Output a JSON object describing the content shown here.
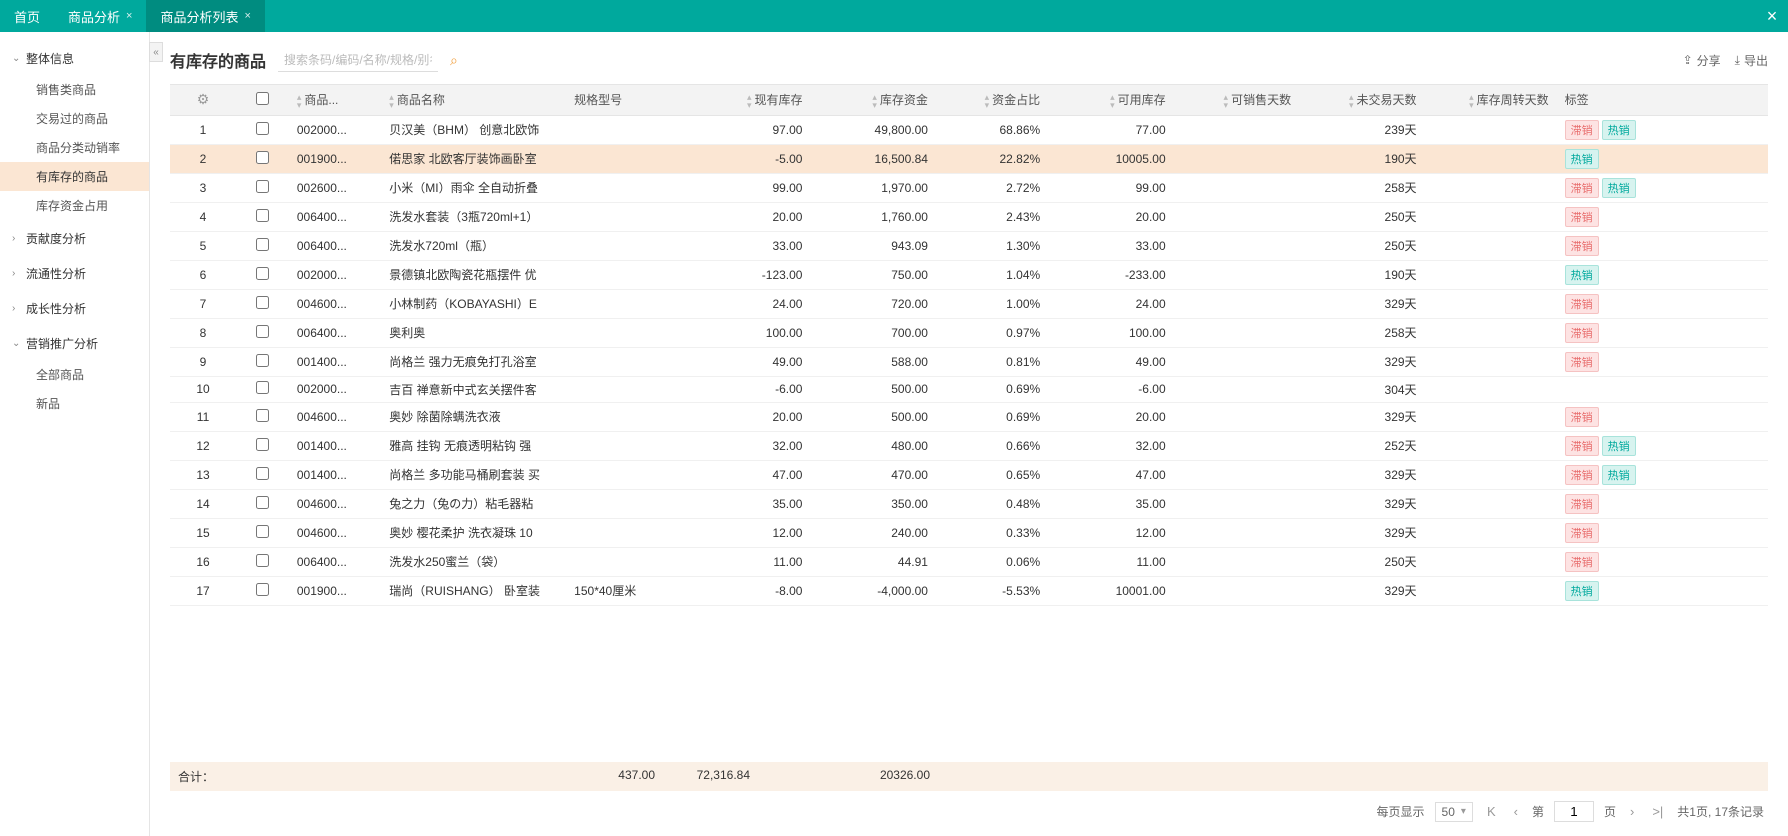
{
  "tabs": [
    {
      "label": "首页",
      "closable": false,
      "active": false
    },
    {
      "label": "商品分析",
      "closable": true,
      "active": false
    },
    {
      "label": "商品分析列表",
      "closable": true,
      "active": true
    }
  ],
  "sidebar": {
    "groups": [
      {
        "title": "整体信息",
        "open": true,
        "items": [
          {
            "label": "销售类商品",
            "active": false
          },
          {
            "label": "交易过的商品",
            "active": false
          },
          {
            "label": "商品分类动销率",
            "active": false
          },
          {
            "label": "有库存的商品",
            "active": true
          },
          {
            "label": "库存资金占用",
            "active": false
          }
        ]
      },
      {
        "title": "贡献度分析",
        "open": false,
        "items": []
      },
      {
        "title": "流通性分析",
        "open": false,
        "items": []
      },
      {
        "title": "成长性分析",
        "open": false,
        "items": []
      },
      {
        "title": "营销推广分析",
        "open": true,
        "items": [
          {
            "label": "全部商品",
            "active": false
          },
          {
            "label": "新品",
            "active": false
          }
        ]
      }
    ]
  },
  "header": {
    "title": "有库存的商品",
    "search_placeholder": "搜索条码/编码/名称/规格/别名",
    "share_label": "分享",
    "export_label": "导出"
  },
  "columns": {
    "gear": "",
    "check": "",
    "code": "商品...",
    "name": "商品名称",
    "spec": "规格型号",
    "stock": "现有库存",
    "capital": "库存资金",
    "ratio": "资金占比",
    "available": "可用库存",
    "saledays": "可销售天数",
    "notrade": "未交易天数",
    "turnover": "库存周转天数",
    "tag": "标签"
  },
  "col_widths": {
    "gear": 50,
    "check": 40,
    "code": 70,
    "name": 140,
    "spec": 90,
    "stock": 95,
    "capital": 95,
    "ratio": 85,
    "available": 95,
    "saledays": 95,
    "notrade": 95,
    "turnover": 100,
    "tag": 160
  },
  "rows": [
    {
      "n": 1,
      "code": "002000...",
      "name": "贝汉美（BHM） 创意北欧饰",
      "spec": "",
      "stock": "97.00",
      "capital": "49,800.00",
      "ratio": "68.86%",
      "available": "77.00",
      "saledays": "",
      "notrade": "239天",
      "turnover": "",
      "tags": [
        "滞销",
        "热销"
      ],
      "highlight": false
    },
    {
      "n": 2,
      "code": "001900...",
      "name": "偌思家 北欧客厅装饰画卧室",
      "spec": "",
      "stock": "-5.00",
      "capital": "16,500.84",
      "ratio": "22.82%",
      "available": "10005.00",
      "saledays": "",
      "notrade": "190天",
      "turnover": "",
      "tags": [
        "热销"
      ],
      "highlight": true
    },
    {
      "n": 3,
      "code": "002600...",
      "name": "小米（MI）雨伞 全自动折叠",
      "spec": "",
      "stock": "99.00",
      "capital": "1,970.00",
      "ratio": "2.72%",
      "available": "99.00",
      "saledays": "",
      "notrade": "258天",
      "turnover": "",
      "tags": [
        "滞销",
        "热销"
      ],
      "highlight": false
    },
    {
      "n": 4,
      "code": "006400...",
      "name": "洗发水套装（3瓶720ml+1）",
      "spec": "",
      "stock": "20.00",
      "capital": "1,760.00",
      "ratio": "2.43%",
      "available": "20.00",
      "saledays": "",
      "notrade": "250天",
      "turnover": "",
      "tags": [
        "滞销"
      ],
      "highlight": false
    },
    {
      "n": 5,
      "code": "006400...",
      "name": "洗发水720ml（瓶）",
      "spec": "",
      "stock": "33.00",
      "capital": "943.09",
      "ratio": "1.30%",
      "available": "33.00",
      "saledays": "",
      "notrade": "250天",
      "turnover": "",
      "tags": [
        "滞销"
      ],
      "highlight": false
    },
    {
      "n": 6,
      "code": "002000...",
      "name": "景德镇北欧陶瓷花瓶摆件 优",
      "spec": "",
      "stock": "-123.00",
      "capital": "750.00",
      "ratio": "1.04%",
      "available": "-233.00",
      "saledays": "",
      "notrade": "190天",
      "turnover": "",
      "tags": [
        "热销"
      ],
      "highlight": false
    },
    {
      "n": 7,
      "code": "004600...",
      "name": "小林制药（KOBAYASHI）E",
      "spec": "",
      "stock": "24.00",
      "capital": "720.00",
      "ratio": "1.00%",
      "available": "24.00",
      "saledays": "",
      "notrade": "329天",
      "turnover": "",
      "tags": [
        "滞销"
      ],
      "highlight": false
    },
    {
      "n": 8,
      "code": "006400...",
      "name": "奥利奥",
      "spec": "",
      "stock": "100.00",
      "capital": "700.00",
      "ratio": "0.97%",
      "available": "100.00",
      "saledays": "",
      "notrade": "258天",
      "turnover": "",
      "tags": [
        "滞销"
      ],
      "highlight": false
    },
    {
      "n": 9,
      "code": "001400...",
      "name": "尚格兰 强力无痕免打孔浴室",
      "spec": "",
      "stock": "49.00",
      "capital": "588.00",
      "ratio": "0.81%",
      "available": "49.00",
      "saledays": "",
      "notrade": "329天",
      "turnover": "",
      "tags": [
        "滞销"
      ],
      "highlight": false
    },
    {
      "n": 10,
      "code": "002000...",
      "name": "吉百 禅意新中式玄关摆件客",
      "spec": "",
      "stock": "-6.00",
      "capital": "500.00",
      "ratio": "0.69%",
      "available": "-6.00",
      "saledays": "",
      "notrade": "304天",
      "turnover": "",
      "tags": [],
      "highlight": false
    },
    {
      "n": 11,
      "code": "004600...",
      "name": "奥妙 除菌除螨洗衣液",
      "spec": "",
      "stock": "20.00",
      "capital": "500.00",
      "ratio": "0.69%",
      "available": "20.00",
      "saledays": "",
      "notrade": "329天",
      "turnover": "",
      "tags": [
        "滞销"
      ],
      "highlight": false
    },
    {
      "n": 12,
      "code": "001400...",
      "name": "雅高 挂钩 无痕透明粘钩 强",
      "spec": "",
      "stock": "32.00",
      "capital": "480.00",
      "ratio": "0.66%",
      "available": "32.00",
      "saledays": "",
      "notrade": "252天",
      "turnover": "",
      "tags": [
        "滞销",
        "热销"
      ],
      "highlight": false
    },
    {
      "n": 13,
      "code": "001400...",
      "name": "尚格兰 多功能马桶刷套装 买",
      "spec": "",
      "stock": "47.00",
      "capital": "470.00",
      "ratio": "0.65%",
      "available": "47.00",
      "saledays": "",
      "notrade": "329天",
      "turnover": "",
      "tags": [
        "滞销",
        "热销"
      ],
      "highlight": false
    },
    {
      "n": 14,
      "code": "004600...",
      "name": "兔之力（兔の力）粘毛器粘",
      "spec": "",
      "stock": "35.00",
      "capital": "350.00",
      "ratio": "0.48%",
      "available": "35.00",
      "saledays": "",
      "notrade": "329天",
      "turnover": "",
      "tags": [
        "滞销"
      ],
      "highlight": false
    },
    {
      "n": 15,
      "code": "004600...",
      "name": "奥妙 樱花柔护 洗衣凝珠 10",
      "spec": "",
      "stock": "12.00",
      "capital": "240.00",
      "ratio": "0.33%",
      "available": "12.00",
      "saledays": "",
      "notrade": "329天",
      "turnover": "",
      "tags": [
        "滞销"
      ],
      "highlight": false
    },
    {
      "n": 16,
      "code": "006400...",
      "name": "洗发水250蜜兰（袋）",
      "spec": "",
      "stock": "11.00",
      "capital": "44.91",
      "ratio": "0.06%",
      "available": "11.00",
      "saledays": "",
      "notrade": "250天",
      "turnover": "",
      "tags": [
        "滞销"
      ],
      "highlight": false
    },
    {
      "n": 17,
      "code": "001900...",
      "name": "瑞尚（RUISHANG） 卧室装",
      "spec": "150*40厘米",
      "stock": "-8.00",
      "capital": "-4,000.00",
      "ratio": "-5.53%",
      "available": "10001.00",
      "saledays": "",
      "notrade": "329天",
      "turnover": "",
      "tags": [
        "热销"
      ],
      "highlight": false
    }
  ],
  "summary": {
    "label": "合计：",
    "stock": "437.00",
    "capital": "72,316.84",
    "ratio": "",
    "available": "20326.00"
  },
  "pagination": {
    "per_page_label": "每页显示",
    "page_size": "50",
    "page_label_prefix": "第",
    "current_page": "1",
    "page_label_suffix": "页",
    "total_text": "共1页, 17条记录"
  },
  "tag_styles": {
    "滞销": "tag-slow",
    "热销": "tag-hot"
  },
  "colors": {
    "brand": "#00a99d",
    "brand_dark": "#008c80",
    "highlight_row": "#fbe6d3",
    "summary_bg": "#faf0e6",
    "search_icon": "#f29f3d"
  }
}
